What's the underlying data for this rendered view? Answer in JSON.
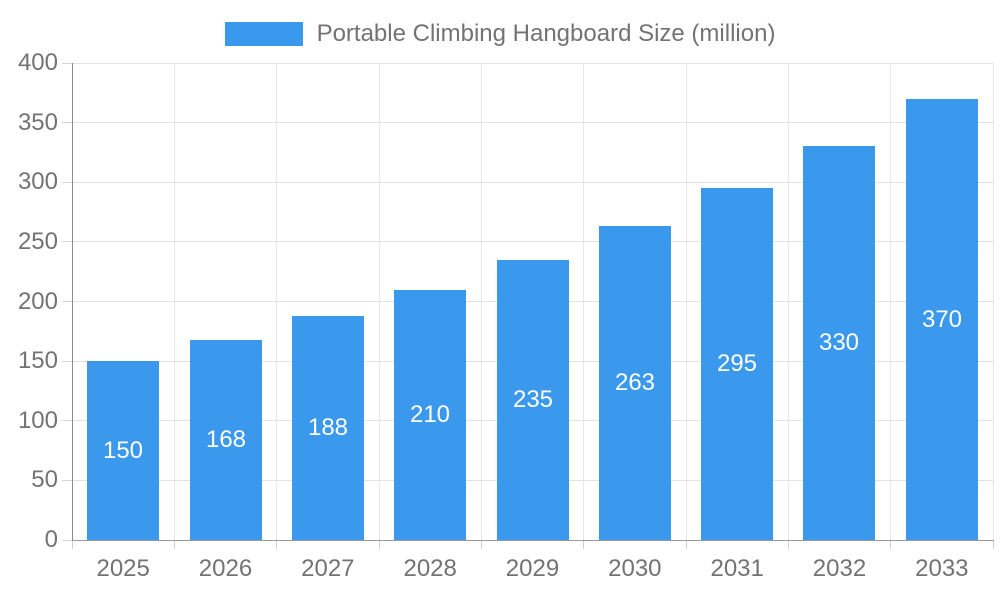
{
  "chart_data": {
    "type": "bar",
    "title": "Portable Climbing Hangboard Size (million)",
    "categories": [
      "2025",
      "2026",
      "2027",
      "2028",
      "2029",
      "2030",
      "2031",
      "2032",
      "2033"
    ],
    "series": [
      {
        "name": "Portable Climbing Hangboard Size (million)",
        "values": [
          150,
          168,
          188,
          210,
          235,
          263,
          295,
          330,
          370
        ]
      }
    ],
    "xlabel": "",
    "ylabel": "",
    "ylim": [
      0,
      400
    ],
    "y_ticks": [
      0,
      50,
      100,
      150,
      200,
      250,
      300,
      350,
      400
    ],
    "grid": true,
    "legend_position": "top-center",
    "colors": {
      "bar": "#3b99ed",
      "value_label": "#ffffff",
      "axis_text": "#737373",
      "grid_line": "#e2e2e2",
      "axis_line": "#8c8c8c"
    }
  }
}
